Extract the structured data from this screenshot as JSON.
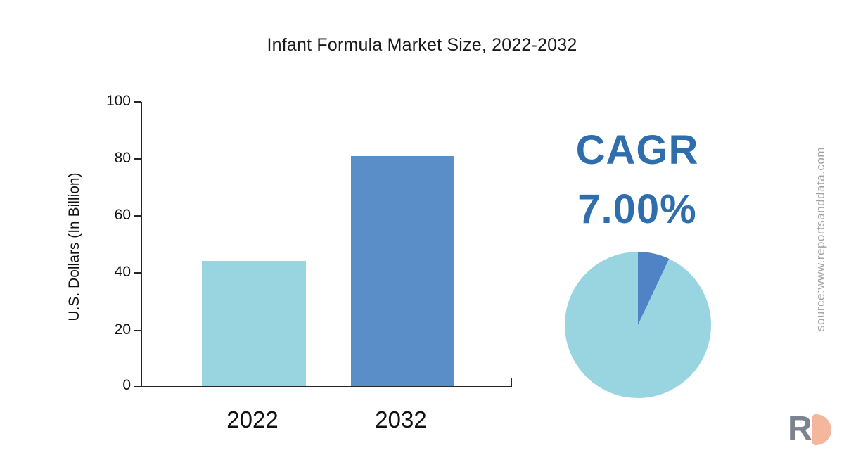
{
  "title": "Infant Formula Market Size, 2022-2032",
  "chart_data": {
    "type": "bar",
    "title": "Infant Formula Market Size, 2022-2032",
    "categories": [
      "2022",
      "2032"
    ],
    "values": [
      44,
      81
    ],
    "xlabel": "",
    "ylabel": "U.S. Dollars (In Billion)",
    "ylim": [
      0,
      100
    ],
    "yticks": [
      0,
      20,
      40,
      60,
      80,
      100
    ],
    "bar_colors": [
      "#99d5e1",
      "#5a8ec8"
    ],
    "grid": false,
    "legend": false
  },
  "cagr": {
    "label": "CAGR",
    "value": "7.00%",
    "percent": 7,
    "text_color": "#2f6ead",
    "pie": {
      "slice_percent": 7,
      "slice_color": "#5083c6",
      "remainder_color": "#99d5e1"
    }
  },
  "source": {
    "text": "source:www.reportsanddata.com"
  },
  "logo": {
    "letter": "R",
    "letter_color": "#7b8290",
    "d_color": "#f4b69c"
  },
  "colors": {
    "background": "#ffffff",
    "axis": "#262626",
    "text": "#111111",
    "source_text": "#a3a3a3"
  }
}
